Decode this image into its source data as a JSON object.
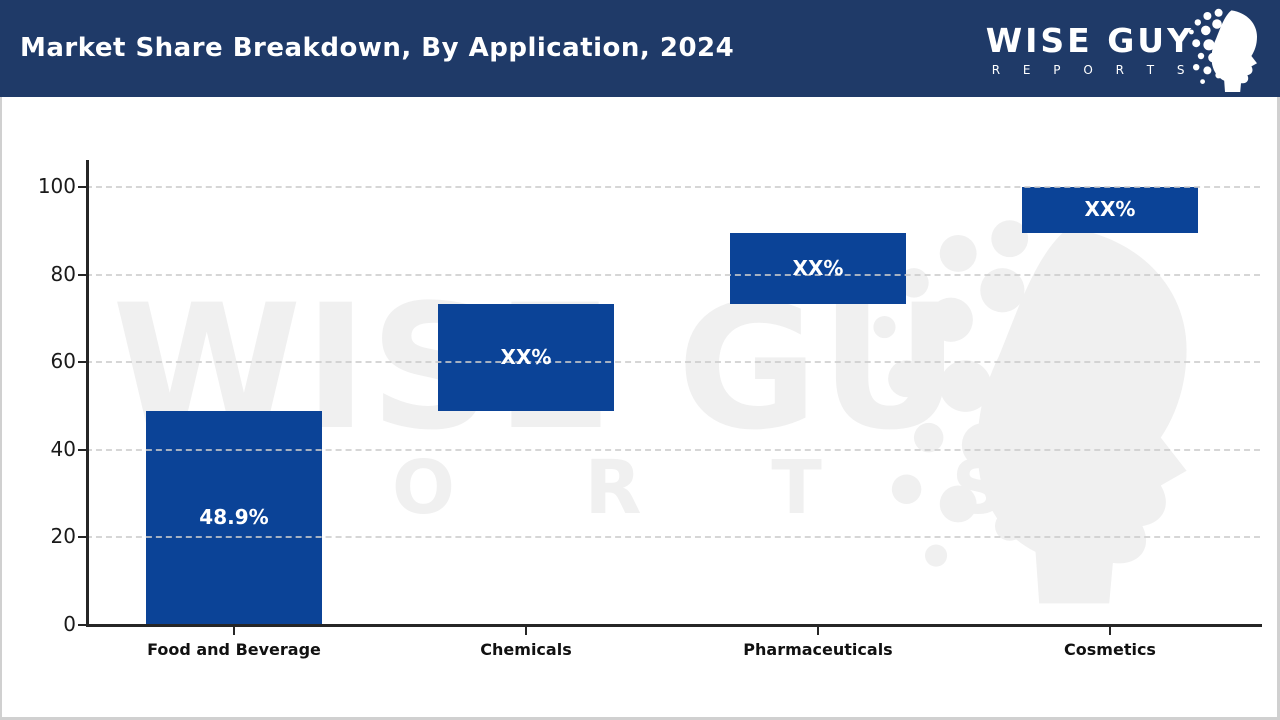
{
  "header": {
    "title": "Market Share Breakdown, By Application, 2024",
    "logo": {
      "line1": "WISE GUY",
      "line2": "R E P O R T S"
    }
  },
  "watermark": {
    "line1": "WISE GU",
    "line2": "P O R T S"
  },
  "chart_data": {
    "type": "bar",
    "subtype": "waterfall",
    "title": "Market Share Breakdown, By Application, 2024",
    "categories": [
      "Food and Beverage",
      "Chemicals",
      "Pharmaceuticals",
      "Cosmetics"
    ],
    "segments": [
      {
        "category": "Food and Beverage",
        "start": 0,
        "end": 48.9,
        "label": "48.9%"
      },
      {
        "category": "Chemicals",
        "start": 48.9,
        "end": 73.2,
        "label": "XX%"
      },
      {
        "category": "Pharmaceuticals",
        "start": 73.2,
        "end": 89.5,
        "label": "XX%"
      },
      {
        "category": "Cosmetics",
        "start": 89.5,
        "end": 100,
        "label": "XX%"
      }
    ],
    "xlabel": "",
    "ylabel": "",
    "yticks": [
      0,
      20,
      40,
      60,
      80,
      100
    ],
    "ylim": [
      0,
      105
    ],
    "grid": {
      "horizontal": true,
      "style": "dashed",
      "drawn_over_bars": true
    },
    "legend": "none",
    "colors": {
      "bar": "#0b4397",
      "value_label": "#ffffff",
      "axis": "#262626",
      "grid": "#cdcdcd",
      "header_bg": "#1f3a68",
      "watermark": "#f0f0f0",
      "tick_text": "#1a1a1a",
      "category_text": "#111111"
    }
  }
}
